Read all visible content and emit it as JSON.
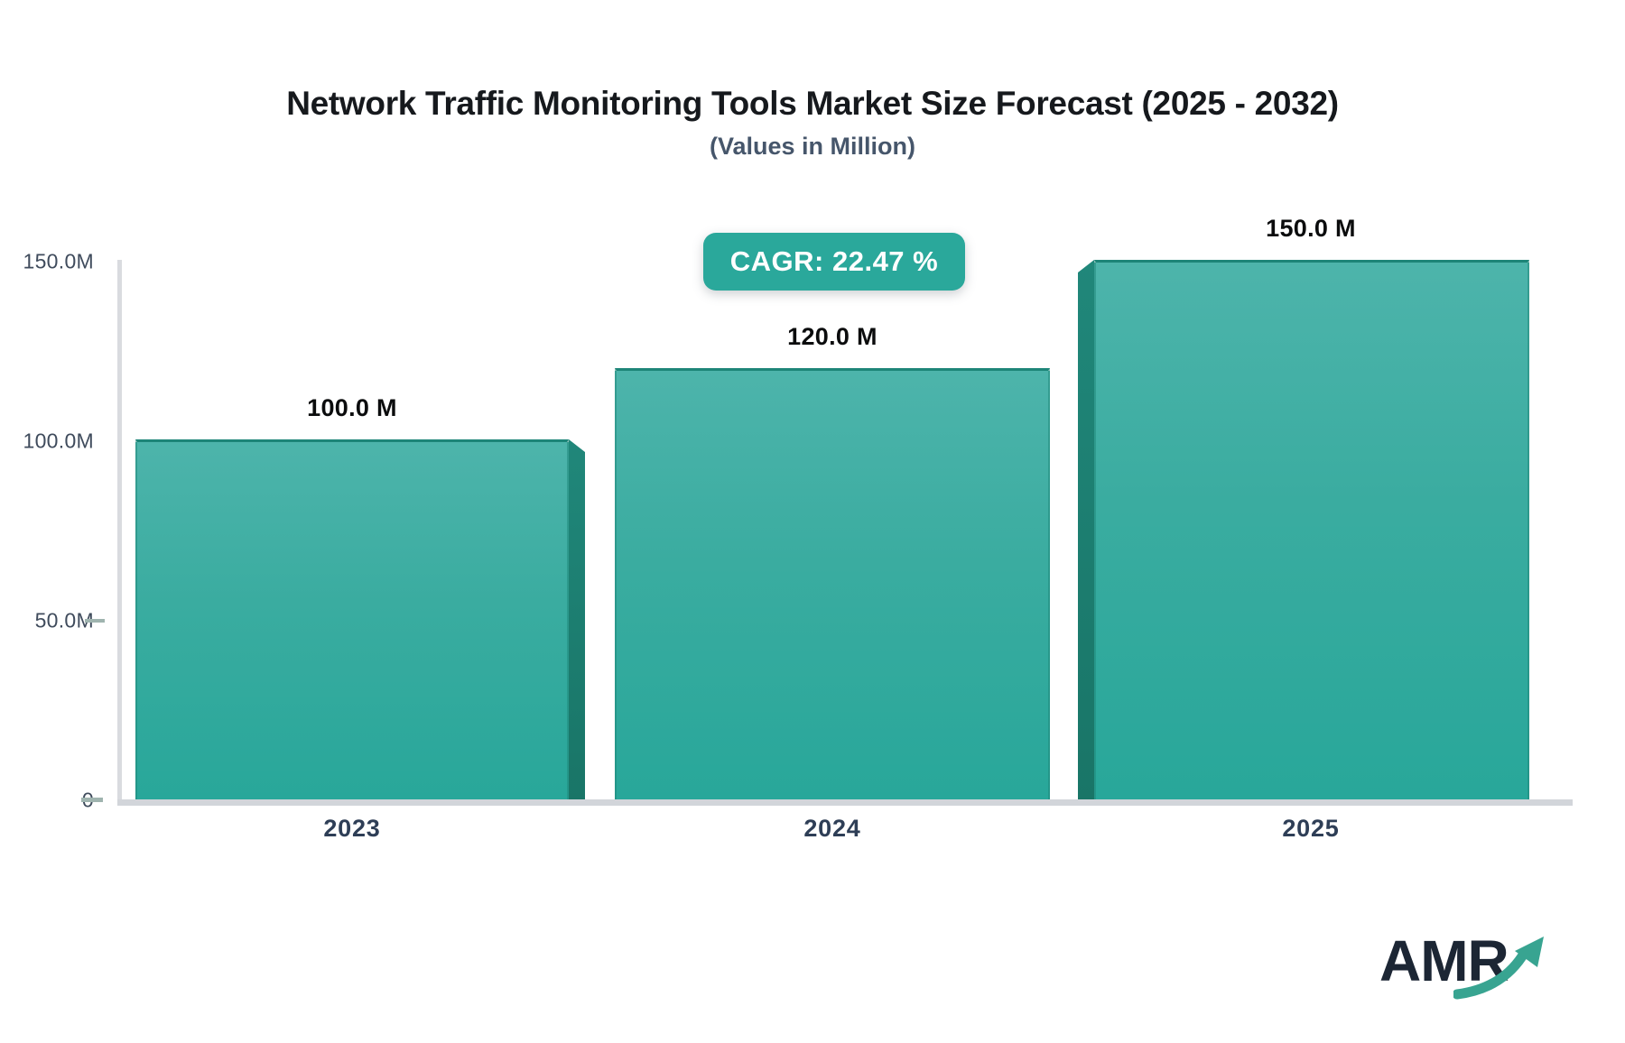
{
  "header": {
    "title": "Network Traffic Monitoring Tools Market Size Forecast (2025 - 2032)",
    "subtitle": "(Values in Million)"
  },
  "badge": {
    "label": "CAGR: 22.47 %"
  },
  "chart_data": {
    "type": "bar",
    "title": "Network Traffic Monitoring Tools Market Size Forecast (2025 - 2032)",
    "subtitle": "(Values in Million)",
    "categories": [
      "2023",
      "2024",
      "2025"
    ],
    "values": [
      100,
      120,
      150
    ],
    "value_labels": [
      "100.0 M",
      "120.0 M",
      "150.0 M"
    ],
    "unit": "Million",
    "ylim": [
      0,
      150
    ],
    "ytick_labels": [
      "150.0M",
      "100.0M",
      "50.0M",
      "0"
    ],
    "ytick_values": [
      150,
      100,
      50,
      0
    ],
    "annotation": "CAGR: 22.47 %",
    "grid": false,
    "legend": false,
    "bar_color_top": "#4db4ab",
    "bar_color_bottom": "#28a79a",
    "bar_side_color": "#1d8175",
    "axis_color": "#d2d5da"
  },
  "branding": {
    "logo_text": "AMR",
    "logo_color": "#1c2634",
    "arrow_color": "#38a491"
  },
  "colors": {
    "accent_teal": "#2aa89b",
    "title_text": "#16191d",
    "subtitle_text": "#46566b",
    "axis_label_text": "#3f4b5c",
    "year_label_text": "#2e3e56",
    "value_label_text": "#0b0c0d",
    "background": "#ffffff"
  }
}
